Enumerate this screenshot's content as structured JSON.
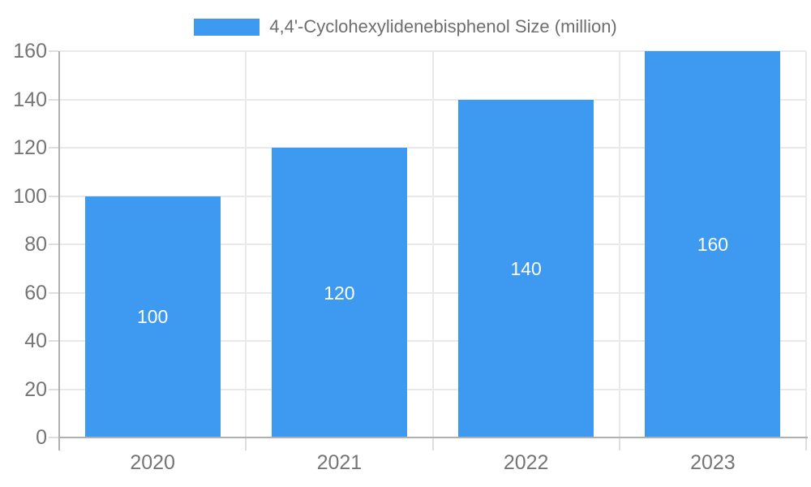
{
  "chart_data": {
    "type": "bar",
    "title": "",
    "legend": "4,4'-Cyclohexylidenebisphenol Size (million)",
    "legend_position": "top",
    "categories": [
      "2020",
      "2021",
      "2022",
      "2023"
    ],
    "series": [
      {
        "name": "4,4'-Cyclohexylidenebisphenol Size (million)",
        "values": [
          100,
          120,
          140,
          160
        ]
      }
    ],
    "bar_value_labels": [
      "100",
      "120",
      "140",
      "160"
    ],
    "xlabel": "",
    "ylabel": "",
    "ylim": [
      0,
      160
    ],
    "ytick_step": 20,
    "yticks": [
      0,
      20,
      40,
      60,
      80,
      100,
      120,
      140,
      160
    ],
    "grid": true,
    "colors": {
      "bar": "#3d9af0",
      "bar_label_text": "#ffffff",
      "axis_line": "#b0b0b0",
      "gridline": "#e9e9e9",
      "axis_text": "#757575",
      "legend_text": "#6e6e6e",
      "background": "#ffffff"
    }
  }
}
